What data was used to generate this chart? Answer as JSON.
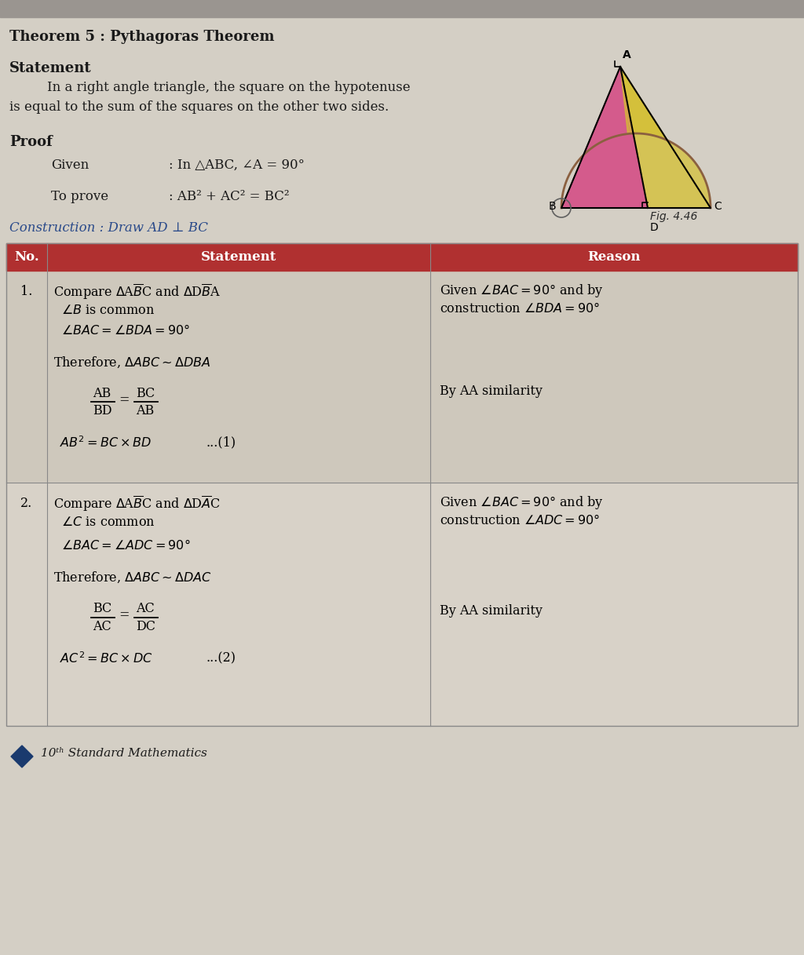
{
  "bg_color": "#b8b0a0",
  "page_color": "#d4cfc5",
  "title": "Theorem 5 : Pythagoras Theorem",
  "title_color": "#2a2a2a",
  "statement_header": "Statement",
  "proof_header": "Proof",
  "given_label": "Given",
  "given_text": ": In △ABC, ∠A = 90°",
  "toprove_label": "To prove",
  "toprove_text": ": AB² + AC² = BC²",
  "construction_text": "Construction : Draw AD ⊥ BC",
  "table_header_bg": "#b03030",
  "no_col_header": "No.",
  "stmt_col_header": "Statement",
  "reason_col_header": "Reason",
  "footer_text": "10ᵗʰ Standard Mathematics",
  "footer_diamond_color": "#1a3a6e"
}
